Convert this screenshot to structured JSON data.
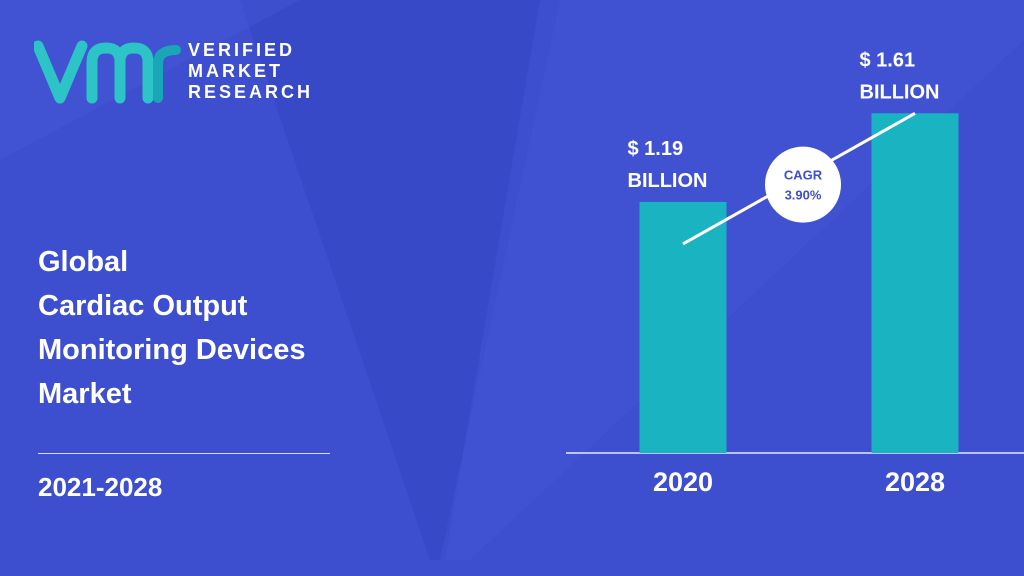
{
  "brand": {
    "line1": "VERIFIED",
    "line2": "MARKET",
    "line3": "RESEARCH",
    "logo_colors": [
      "#2cc4c7",
      "#1aa6b7"
    ]
  },
  "report": {
    "title_lines": [
      "Global",
      "Cardiac Output",
      "Monitoring Devices",
      "Market"
    ],
    "period": "2021-2028"
  },
  "colors": {
    "background": "#3d4fcf",
    "bar": "#1ab3c2",
    "text": "#ffffff",
    "cagr_text": "#3d4fcf"
  },
  "chart_data": {
    "type": "bar",
    "categories": [
      "2020",
      "2028"
    ],
    "values": [
      1.19,
      1.61
    ],
    "value_labels": [
      [
        "$ 1.19",
        "BILLION"
      ],
      [
        "$ 1.61",
        "BILLION"
      ]
    ],
    "cagr_label": "CAGR",
    "cagr_value": "3.90%"
  }
}
